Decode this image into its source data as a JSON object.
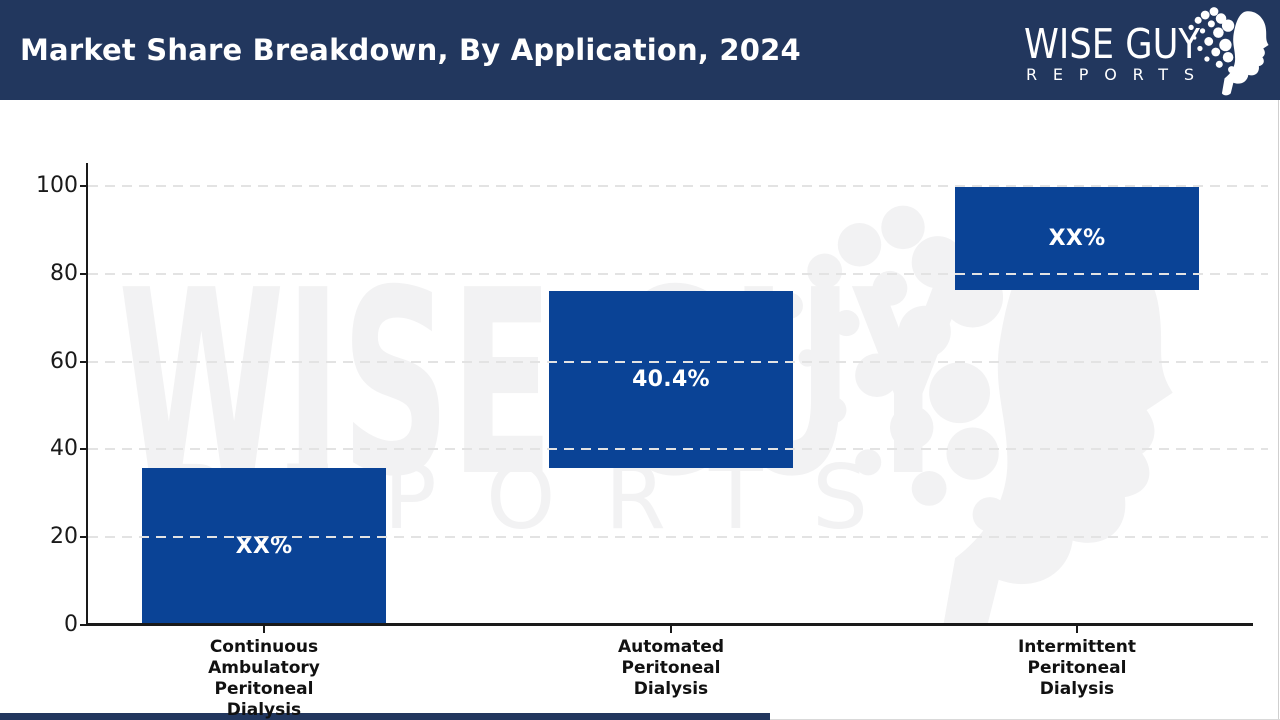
{
  "header": {
    "title": "Market Share Breakdown, By Application, 2024"
  },
  "logo": {
    "line1": "WISE GUY",
    "line2": "REPORTS"
  },
  "watermark": {
    "line1": "WISE GUY",
    "line2": "REPORTS"
  },
  "colors": {
    "header_bg": "#22375e",
    "footer_bg": "#22375e",
    "bar": "#0a4396",
    "grid": "#e3e3e3",
    "axis": "#1a1a1a",
    "watermark": "#f2f2f3",
    "bar_label": "#ffffff"
  },
  "chart_data": {
    "type": "bar",
    "subtype": "floating-segment-bars (waterfall style market share breakdown)",
    "title": "Market Share Breakdown, By Application, 2024",
    "xlabel": "",
    "ylabel": "",
    "ylim": [
      0,
      105
    ],
    "yticks": [
      0,
      20,
      40,
      60,
      80,
      100
    ],
    "grid": "horizontal dashed, drawn over bars",
    "legend": "none",
    "categories": [
      "Continuous Ambulatory Peritoneal Dialysis",
      "Automated Peritoneal Dialysis",
      "Intermittent Peritoneal Dialysis"
    ],
    "category_lines": [
      [
        "Continuous",
        "Ambulatory",
        "Peritoneal",
        "Dialysis"
      ],
      [
        "Automated",
        "Peritoneal",
        "Dialysis"
      ],
      [
        "Intermittent",
        "Peritoneal",
        "Dialysis"
      ]
    ],
    "segments": [
      {
        "category": "Continuous Ambulatory Peritoneal Dialysis",
        "start": 0,
        "end": 35.8,
        "label": "XX%"
      },
      {
        "category": "Automated Peritoneal Dialysis",
        "start": 35.8,
        "end": 76.2,
        "label": "40.4%"
      },
      {
        "category": "Intermittent Peritoneal Dialysis",
        "start": 76.4,
        "end": 99.9,
        "label": "XX%"
      }
    ]
  }
}
